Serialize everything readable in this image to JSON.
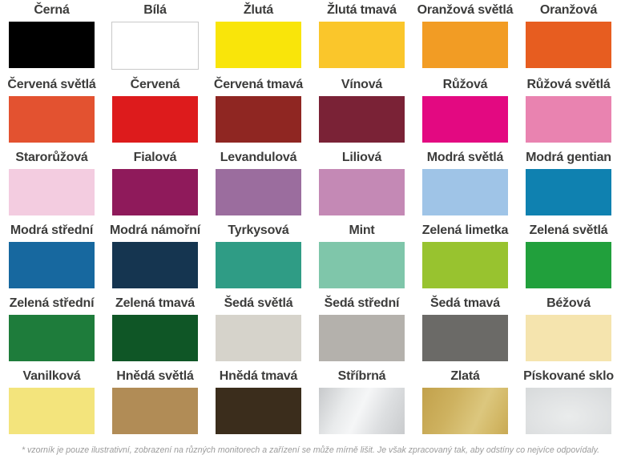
{
  "page": {
    "background": "#FFFFFF",
    "label_color": "#3C3C3B"
  },
  "palette": {
    "swatches": [
      {
        "label": "Černá",
        "color": "#000000"
      },
      {
        "label": "Bílá",
        "color": "#FFFFFF",
        "border": "#C9C9C9"
      },
      {
        "label": "Žlutá",
        "color": "#F9E50A"
      },
      {
        "label": "Žlutá tmavá",
        "color": "#FAC62B"
      },
      {
        "label": "Oranžová světlá",
        "color": "#F29C24"
      },
      {
        "label": "Oranžová",
        "color": "#E75D20"
      },
      {
        "label": "Červená světlá",
        "color": "#E35230"
      },
      {
        "label": "Červená",
        "color": "#DD1B1C"
      },
      {
        "label": "Červená tmavá",
        "color": "#8F2622"
      },
      {
        "label": "Vínová",
        "color": "#7A2236"
      },
      {
        "label": "Růžová",
        "color": "#E30981"
      },
      {
        "label": "Růžová světlá",
        "color": "#E983B0"
      },
      {
        "label": "Starorůžová",
        "color": "#F3CCE0"
      },
      {
        "label": "Fialová",
        "color": "#8F1A5B"
      },
      {
        "label": "Levandulová",
        "color": "#9B6D9E"
      },
      {
        "label": "Liliová",
        "color": "#C489B5"
      },
      {
        "label": "Modrá světlá",
        "color": "#9FC4E7"
      },
      {
        "label": "Modrá gentian",
        "color": "#0F81B0"
      },
      {
        "label": "Modrá střední",
        "color": "#17689F"
      },
      {
        "label": "Modrá námořní",
        "color": "#153550"
      },
      {
        "label": "Tyrkysová",
        "color": "#2F9C85"
      },
      {
        "label": "Mint",
        "color": "#7FC6AA"
      },
      {
        "label": "Zelená limetka",
        "color": "#98C32F"
      },
      {
        "label": "Zelená světlá",
        "color": "#21A03C"
      },
      {
        "label": "Zelená střední",
        "color": "#1E7C3B"
      },
      {
        "label": "Zelená tmavá",
        "color": "#0F5626"
      },
      {
        "label": "Šedá světlá",
        "color": "#D6D3CB"
      },
      {
        "label": "Šedá střední",
        "color": "#B4B1AC"
      },
      {
        "label": "Šedá tmavá",
        "color": "#6B6A67"
      },
      {
        "label": "Béžová",
        "color": "#F5E4AE"
      },
      {
        "label": "Vanilková",
        "color": "#F3E47C"
      },
      {
        "label": "Hnědá světlá",
        "color": "#B18C56"
      },
      {
        "label": "Hnědá tmavá",
        "color": "#3B2D1C"
      },
      {
        "label": "Stříbrná",
        "color": "linear-gradient(115deg, #C7C9CB 0%, #E9EBEC 30%, #F5F6F7 48%, #DDDFE1 72%, #C9CBCD 100%)"
      },
      {
        "label": "Zlatá",
        "color": "linear-gradient(115deg, #C2A14B 0%, #CEB260 35%, #DCC77E 65%, #D2B765 85%, #C8A954 100%)"
      },
      {
        "label": "Pískované sklo",
        "color": "radial-gradient(ellipse 90px 55px at 50% 62%, #EAECEC 0%, #E0E2E3 50%, #D4D7D8 100%)"
      }
    ]
  },
  "footer": {
    "note": "* vzorník je pouze ilustrativní, zobrazení na různých monitorech a zařízení se může mírně lišit. Je však zpracovaný tak, aby odstíny co nejvíce odpovídaly."
  }
}
